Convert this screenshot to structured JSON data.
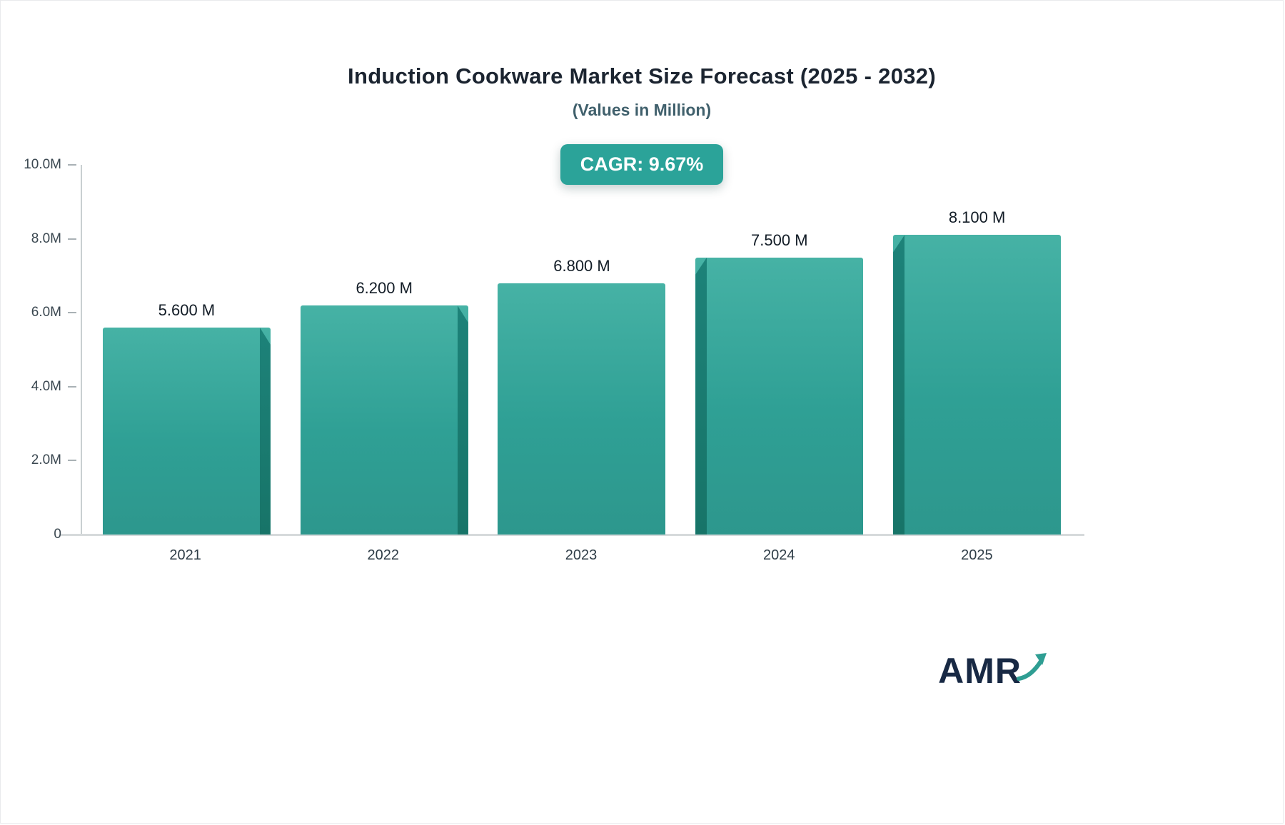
{
  "chart_data": {
    "type": "bar",
    "title": "Induction Cookware Market Size Forecast (2025 - 2032)",
    "subtitle": "(Values in Million)",
    "annotation": "CAGR: 9.67%",
    "categories": [
      "2021",
      "2022",
      "2023",
      "2024",
      "2025"
    ],
    "values": [
      5.6,
      6.2,
      6.8,
      7.5,
      8.1
    ],
    "value_labels": [
      "5.600 M",
      "6.200 M",
      "6.800 M",
      "7.500 M",
      "8.100 M"
    ],
    "units": "Million",
    "ylim": [
      0,
      10
    ],
    "yticks": [
      "10.0M",
      "8.0M",
      "6.0M",
      "4.0M",
      "2.0M",
      "0"
    ],
    "grid": false,
    "legend": "none"
  },
  "colors": {
    "accent_teal": "#2ba399",
    "bar_gradient_top": "#46b2a5",
    "bar_gradient_bottom": "#2d978d",
    "bar_side_shadow": "#1d8279",
    "logo_navy": "#182944"
  },
  "logo": {
    "text": "AMR",
    "icon": "trend-up-arrow"
  }
}
